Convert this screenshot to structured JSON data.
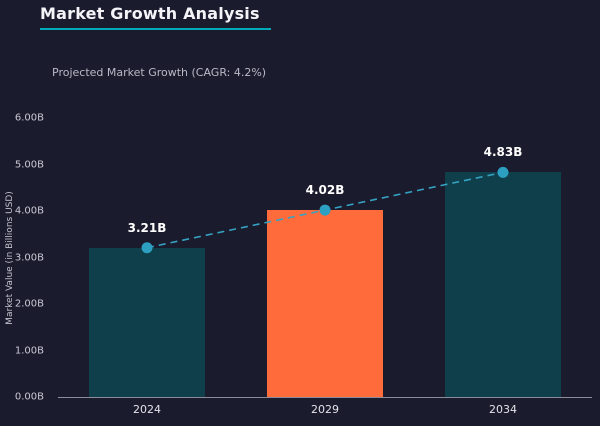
{
  "chart_data": {
    "type": "bar",
    "title": "Market Growth Analysis",
    "subtitle": "Projected Market Growth (CAGR: 4.2%)",
    "categories": [
      "2024",
      "2029",
      "2034"
    ],
    "values": [
      3.21,
      4.02,
      4.83
    ],
    "value_labels": [
      "3.21B",
      "4.02B",
      "4.83B"
    ],
    "ylabel": "Market Value (in Billions USD)",
    "xlabel": "",
    "ylim": [
      0,
      6
    ],
    "yticks": [
      "0.00B",
      "1.00B",
      "2.00B",
      "3.00B",
      "4.00B",
      "5.00B",
      "6.00B"
    ],
    "grid": false,
    "legend": false,
    "trend_line": {
      "style": "dashed-with-markers",
      "points": [
        3.21,
        4.02,
        4.83
      ]
    },
    "colors": {
      "background": "#1b1b2e",
      "bar_colors": [
        "#0e3f4b",
        "#ff6b3b",
        "#0e3f4b"
      ],
      "line": "#35a2c2",
      "marker": "#2d9fc0",
      "title_underline": "#00a9b8",
      "axis": "#8d8d9a",
      "text_primary": "#f4f4f8",
      "text_secondary": "#b9b9c6"
    }
  }
}
